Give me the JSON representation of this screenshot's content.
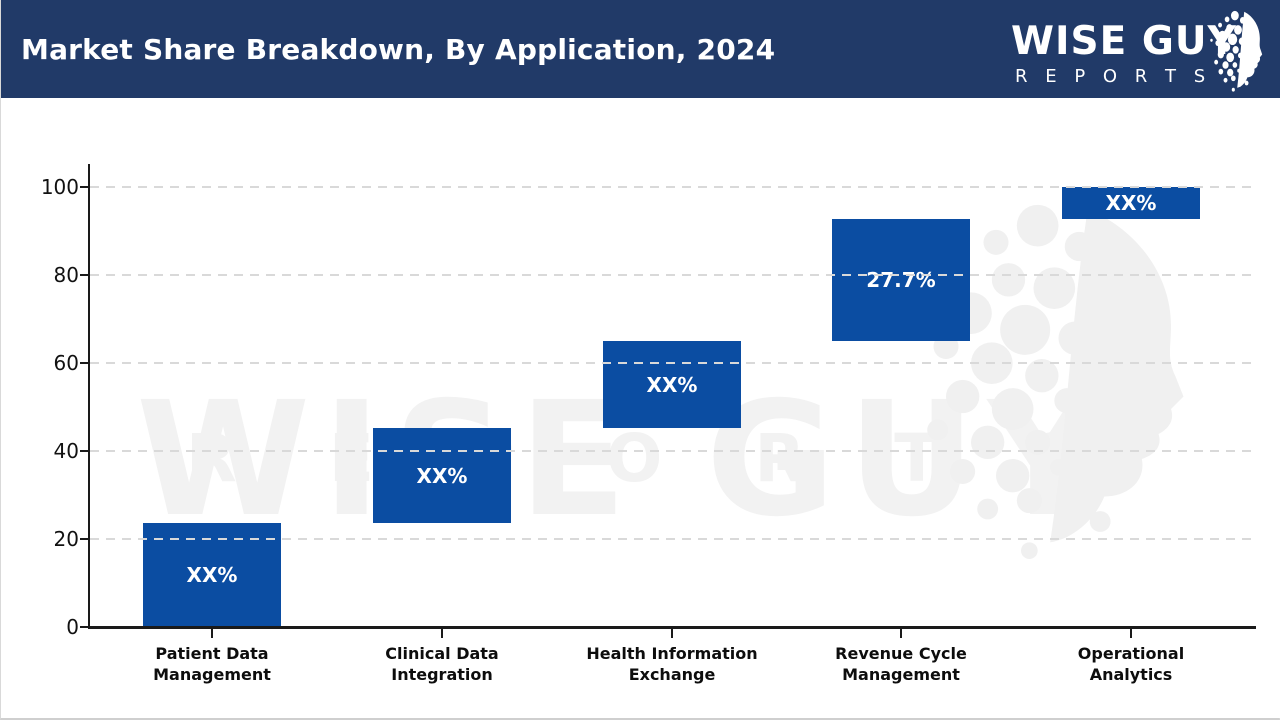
{
  "header": {
    "title": "Market Share Breakdown, By Application, 2024",
    "logo": {
      "line1": "WISE GUY",
      "line2": "R E P O R T S"
    }
  },
  "watermark": {
    "line1": "WISE GUY",
    "line2": "REPORTS"
  },
  "chart_data": {
    "type": "bar",
    "subtype": "waterfall",
    "title": "Market Share Breakdown, By Application, 2024",
    "categories": [
      "Patient Data\nManagement",
      "Clinical Data\nIntegration",
      "Health Information\nExchange",
      "Revenue Cycle\nManagement",
      "Operational\nAnalytics"
    ],
    "segments": [
      {
        "category": "Patient Data Management",
        "start": 0,
        "end": 23.6,
        "value": 23.6,
        "display": "XX%"
      },
      {
        "category": "Clinical Data Integration",
        "start": 23.6,
        "end": 45.2,
        "value": 21.6,
        "display": "XX%"
      },
      {
        "category": "Health Information Exchange",
        "start": 45.2,
        "end": 65.0,
        "value": 19.8,
        "display": "XX%"
      },
      {
        "category": "Revenue Cycle Management",
        "start": 65.0,
        "end": 92.7,
        "value": 27.7,
        "display": "27.7%"
      },
      {
        "category": "Operational Analytics",
        "start": 92.7,
        "end": 100,
        "value": 7.3,
        "display": "XX%"
      }
    ],
    "yticks": [
      0,
      20,
      40,
      60,
      80,
      100
    ],
    "ylim": [
      0,
      105
    ],
    "grid": "dashed-horizontal",
    "legend": "none",
    "bar_color": "#0b4da2",
    "label_color": "#ffffff",
    "header_color": "#213a68"
  }
}
